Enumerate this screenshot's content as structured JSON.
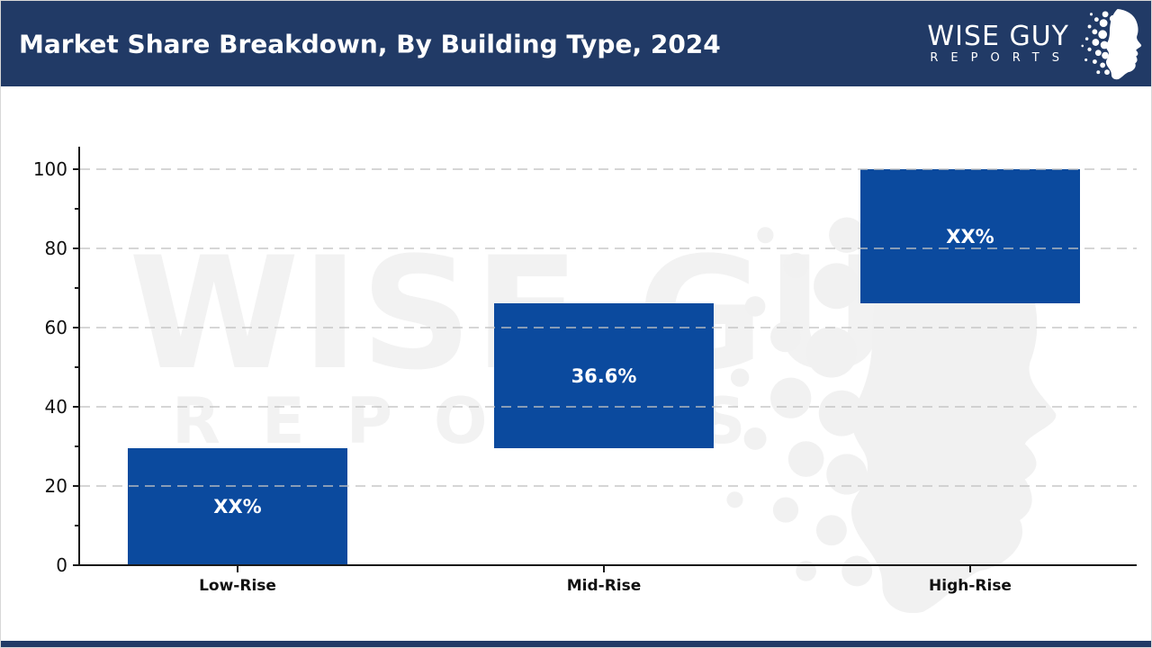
{
  "header": {
    "title": "Market Share Breakdown, By Building Type, 2024",
    "logo": {
      "line1": "WISE GUY",
      "line2": "REPORTS"
    }
  },
  "watermark": {
    "line1": "WISE GUY",
    "line2": "REPORTS"
  },
  "chart_data": {
    "type": "bar",
    "subtype": "floating-segment-waterfall",
    "title": "Market Share Breakdown, By Building Type, 2024",
    "categories": [
      "Low-Rise",
      "Mid-Rise",
      "High-Rise"
    ],
    "segments": [
      {
        "category": "Low-Rise",
        "start": 0,
        "end": 29.5,
        "value": 29.5,
        "label": "XX%"
      },
      {
        "category": "Mid-Rise",
        "start": 29.5,
        "end": 66.1,
        "value": 36.6,
        "label": "36.6%"
      },
      {
        "category": "High-Rise",
        "start": 66.1,
        "end": 100,
        "value": 33.9,
        "label": "XX%"
      }
    ],
    "bar_labels": [
      "XX%",
      "36.6%",
      "XX%"
    ],
    "xlabel": "",
    "ylabel": "",
    "ylim": [
      0,
      100
    ],
    "yticks": [
      0,
      20,
      40,
      60,
      80,
      100
    ],
    "minor_yticks": [
      10,
      30,
      50,
      70,
      90
    ],
    "grid": "horizontal-dashed",
    "legend": "none"
  },
  "colors": {
    "header_bg": "#213a66",
    "bar": "#0b4a9e",
    "bar_label_text": "#ffffff",
    "grid": "#c2c2c2",
    "axis": "#1a1a1a",
    "tick_text": "#111111",
    "watermark": "#f2f2f2"
  }
}
